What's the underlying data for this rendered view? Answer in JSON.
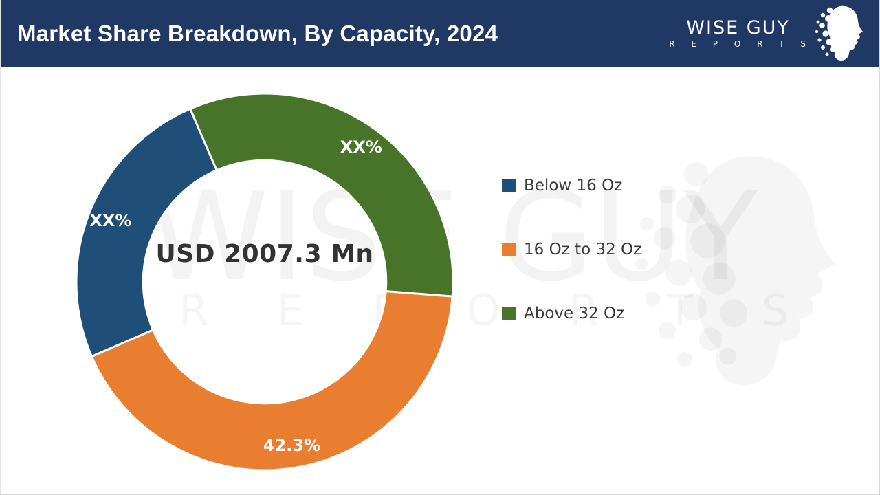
{
  "header": {
    "title": "Market Share Breakdown, By Capacity, 2024",
    "logo": {
      "brand_top": "WISE GUY",
      "brand_bottom": "R E P O R T S"
    }
  },
  "chart_data": {
    "type": "pie",
    "subtype": "donut",
    "title": "Market Share Breakdown, By Capacity, 2024",
    "center_label": "USD 2007.3 Mn",
    "start_angle_deg": -23.3,
    "inner_radius_ratio": 0.645,
    "label_radius_ratio": 0.88,
    "legend_position": "right",
    "series": [
      {
        "name": "Above 32 Oz",
        "value": 32.7,
        "display_label": "XX%",
        "color": "#487429"
      },
      {
        "name": "16 Oz to 32 Oz",
        "value": 42.3,
        "display_label": "42.3%",
        "color": "#E97E30"
      },
      {
        "name": "Below 16 Oz",
        "value": 25.0,
        "display_label": "XX%",
        "color": "#1F4E79"
      }
    ]
  },
  "legend": {
    "items": [
      {
        "label": "Below 16 Oz",
        "color": "#1F4E79"
      },
      {
        "label": "16 Oz to 32 Oz",
        "color": "#E97E30"
      },
      {
        "label": "Above 32 Oz",
        "color": "#487429"
      }
    ]
  },
  "watermark": {
    "line1": "WISE GUY",
    "line2": "R E P O R T S"
  },
  "colors": {
    "header_bg": "#1F3864",
    "text_dark": "#3A3A3A",
    "slice_label": "#FFFFFF",
    "watermark_gray": "#F2F3F5"
  }
}
